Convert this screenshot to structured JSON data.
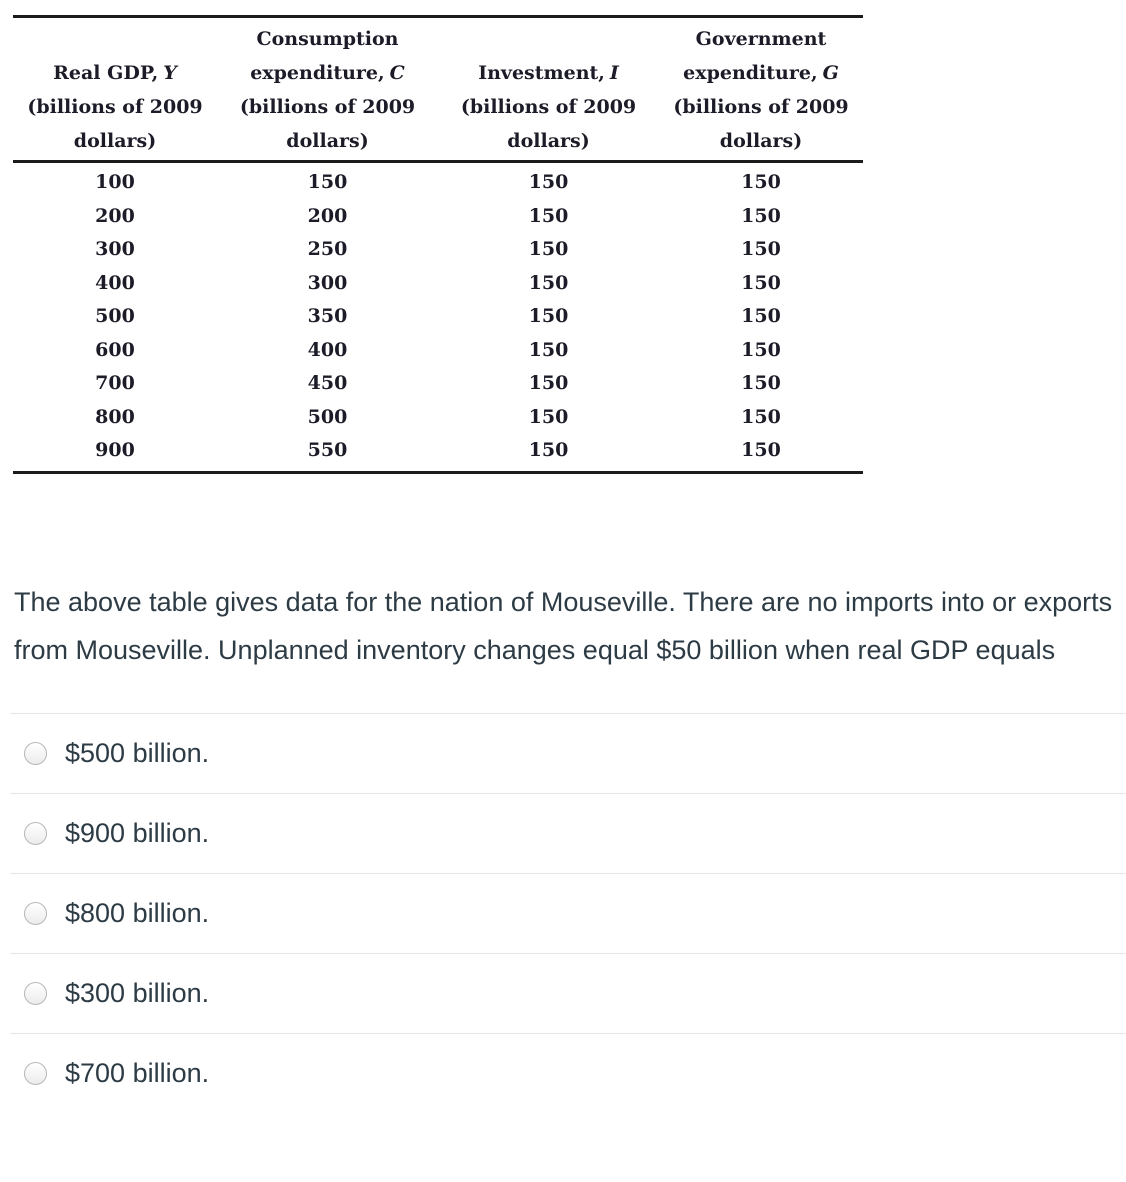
{
  "colors": {
    "body_text": "#2d3b45",
    "table_text": "#1c1c28",
    "table_border": "#1b1b1b",
    "option_divider": "#e3e6e8",
    "radio_border": "#b4b7ba"
  },
  "table": {
    "columns": [
      {
        "top": "",
        "label": "Real GDP,",
        "symbol": "Y",
        "unit1": "(billions of 2009",
        "unit2": "dollars)"
      },
      {
        "top": "Consumption",
        "label": "expenditure,",
        "symbol": "C",
        "unit1": "(billions of 2009",
        "unit2": "dollars)"
      },
      {
        "top": "",
        "label": "Investment,",
        "symbol": "I",
        "unit1": "(billions of 2009",
        "unit2": "dollars)"
      },
      {
        "top": "Government",
        "label": "expenditure,",
        "symbol": "G",
        "unit1": "(billions of 2009",
        "unit2": "dollars)"
      }
    ],
    "rows": [
      [
        "100",
        "150",
        "150",
        "150"
      ],
      [
        "200",
        "200",
        "150",
        "150"
      ],
      [
        "300",
        "250",
        "150",
        "150"
      ],
      [
        "400",
        "300",
        "150",
        "150"
      ],
      [
        "500",
        "350",
        "150",
        "150"
      ],
      [
        "600",
        "400",
        "150",
        "150"
      ],
      [
        "700",
        "450",
        "150",
        "150"
      ],
      [
        "800",
        "500",
        "150",
        "150"
      ],
      [
        "900",
        "550",
        "150",
        "150"
      ]
    ]
  },
  "question": {
    "text": "The above table gives data for the nation of Mouseville. There are no imports into or exports from Mouseville. Unplanned inventory changes equal $50 billion when real GDP equals"
  },
  "options": [
    {
      "label": "$500 billion."
    },
    {
      "label": "$900 billion."
    },
    {
      "label": "$800 billion."
    },
    {
      "label": "$300 billion."
    },
    {
      "label": "$700 billion."
    }
  ]
}
